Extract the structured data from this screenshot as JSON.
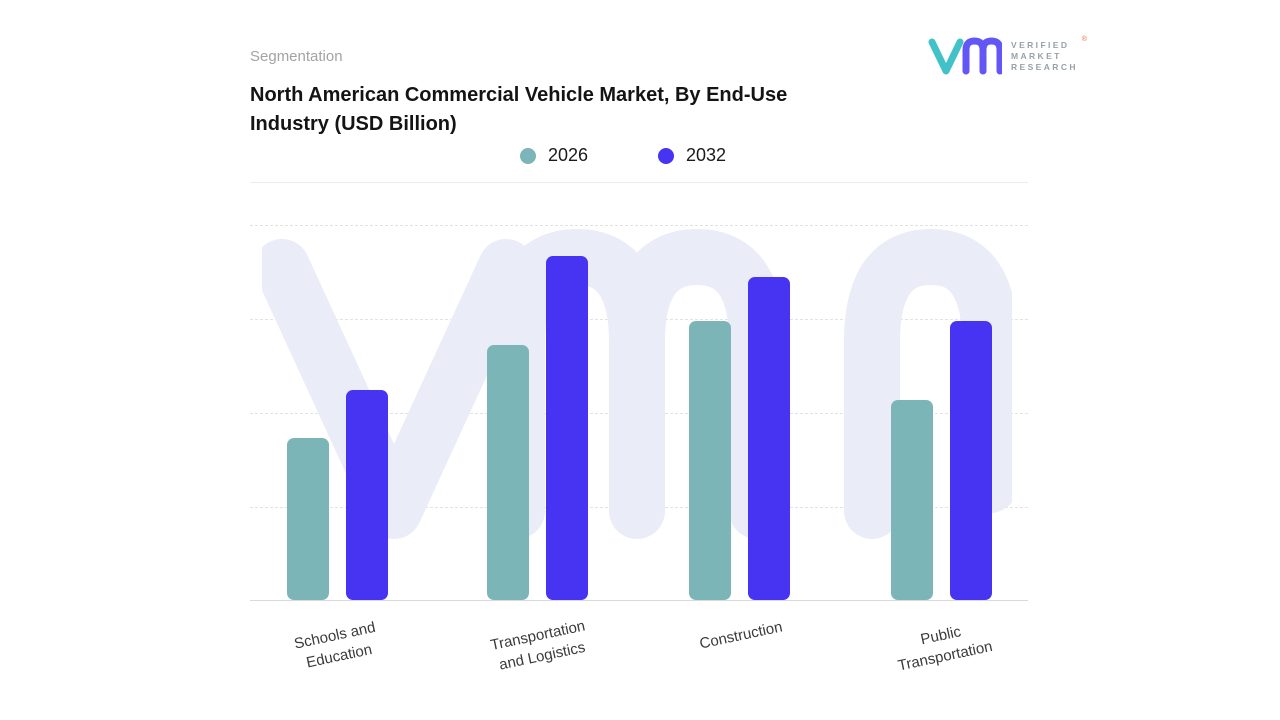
{
  "header": {
    "eyebrow": "Segmentation",
    "title": "North American Commercial Vehicle Market, By End-Use Industry (USD Billion)"
  },
  "logo": {
    "lines": [
      "VERIFIED",
      "MARKET",
      "RESEARCH"
    ],
    "registered": "®",
    "v_color": "#41c2c8",
    "m_color": "#6356f6",
    "text_color": "#98a1a9"
  },
  "chart_data": {
    "type": "bar",
    "title": "North American Commercial Vehicle Market, By End-Use Industry (USD Billion)",
    "categories": [
      "Schools and Education",
      "Transportation and Logistics",
      "Construction",
      "Public Transportation"
    ],
    "category_label_lines": [
      [
        "Schools and",
        "Education"
      ],
      [
        "Transportation",
        "and Logistics"
      ],
      [
        "Construction"
      ],
      [
        "Public",
        "Transportation"
      ]
    ],
    "series": [
      {
        "name": "2026",
        "color": "#7cb5b8",
        "values": [
          47,
          74,
          81,
          58
        ]
      },
      {
        "name": "2032",
        "color": "#4733f2",
        "values": [
          61,
          100,
          94,
          81
        ]
      }
    ],
    "xlabel": "",
    "ylabel": "",
    "ylim": [
      0,
      100
    ],
    "grid": "horizontal-dashed",
    "legend_position": "top",
    "watermark": "vmr"
  }
}
